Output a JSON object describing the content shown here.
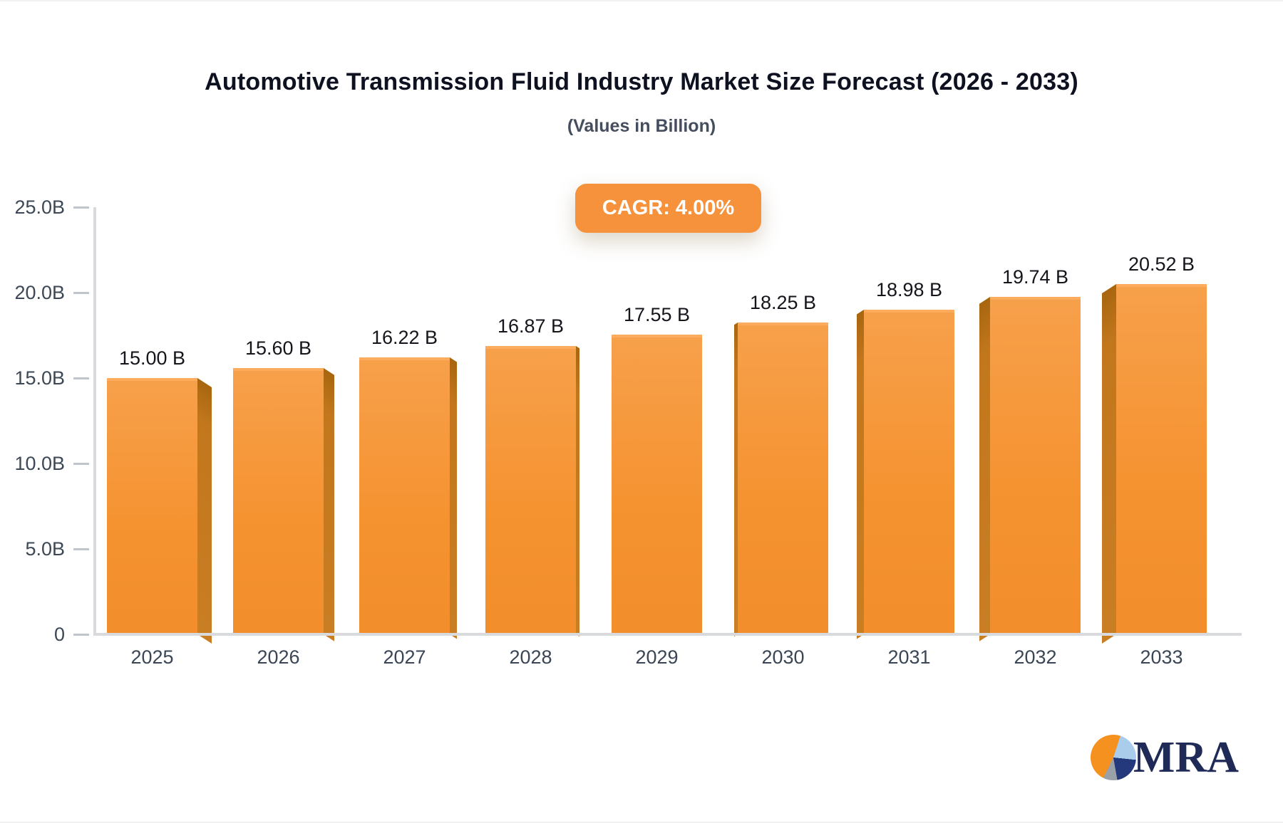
{
  "chart": {
    "title": "Automotive Transmission Fluid Industry Market Size Forecast (2026 - 2033)",
    "subtitle": "(Values in Billion)",
    "cagr_badge": "CAGR: 4.00%",
    "badge_bg": "#f6913c"
  },
  "chart_data": {
    "type": "bar",
    "title": "Automotive Transmission Fluid Industry Market Size Forecast (2026 - 2033)",
    "subtitle": "(Values in Billion)",
    "annotation": "CAGR: 4.00%",
    "categories": [
      "2025",
      "2026",
      "2027",
      "2028",
      "2029",
      "2030",
      "2031",
      "2032",
      "2033"
    ],
    "values": [
      15.0,
      15.6,
      16.22,
      16.87,
      17.55,
      18.25,
      18.98,
      19.74,
      20.52
    ],
    "value_labels": [
      "15.00 B",
      "15.60 B",
      "16.22 B",
      "16.87 B",
      "17.55 B",
      "18.25 B",
      "18.98 B",
      "19.74 B",
      "20.52 B"
    ],
    "xlabel": "",
    "ylabel": "",
    "ylim": [
      0,
      25
    ],
    "ytick_values": [
      0,
      5,
      10,
      15,
      20,
      25
    ],
    "ytick_labels": [
      "0",
      "5.0B",
      "10.0B",
      "15.0B",
      "20.0B",
      "25.0B"
    ],
    "grid": false,
    "legend": false,
    "style": "3d-perspective-bars",
    "colors": {
      "face_top": "#f7a04b",
      "face_mid": "#f59331",
      "face_bottom": "#f28e2b",
      "face_edge": "#fcac5c",
      "side_dark": "#a8660f",
      "side": "#c2771d",
      "side_light": "#c97e24",
      "axis": "#d8dade",
      "tick_text": "#3d4856",
      "value_text": "#14161c"
    }
  },
  "logo": {
    "text": "MRA",
    "icon": "pie-chart-icon",
    "text_color": "#1f2a56",
    "pie_orange": "#f5921f",
    "pie_lightblue": "#a9cdea",
    "pie_navy": "#24397b",
    "pie_gray": "#9aa0a8"
  }
}
